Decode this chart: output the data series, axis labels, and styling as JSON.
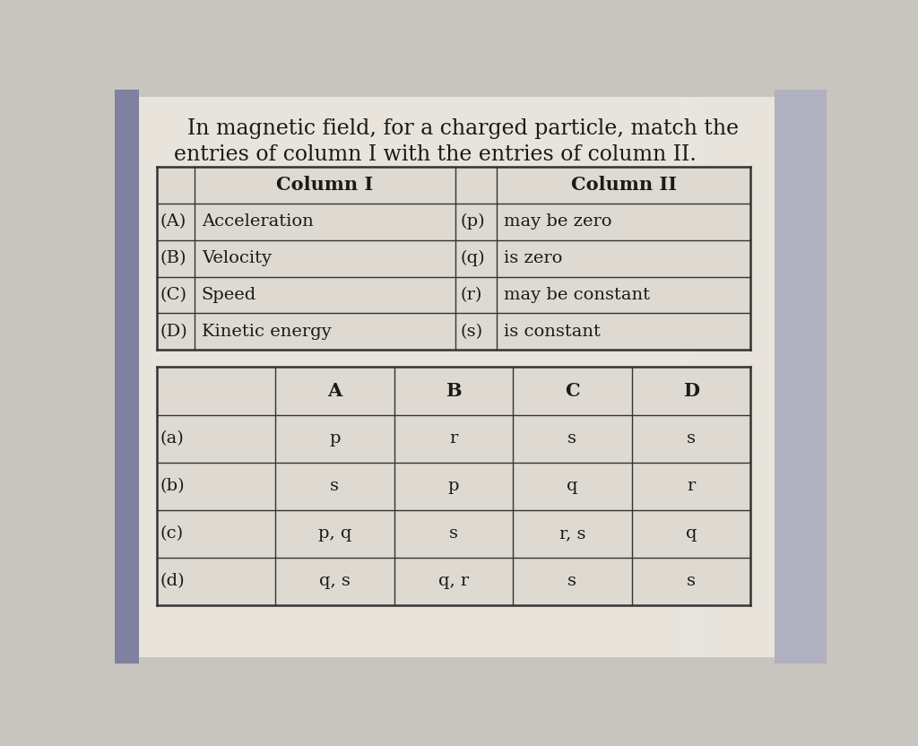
{
  "title_line1": "In magnetic field, for a charged particle, match the",
  "title_line2": "entries of column I with the entries of column II.",
  "bg_color": "#c8c4be",
  "page_color": "#e8e4dc",
  "table_bg": "#dedad2",
  "table1": {
    "col1_header": "Column I",
    "col2_header": "Column II",
    "rows": [
      [
        "(A)",
        "Acceleration",
        "(p)",
        "may be zero"
      ],
      [
        "(B)",
        "Velocity",
        "(q)",
        "is zero"
      ],
      [
        "(C)",
        "Speed",
        "(r)",
        "may be constant"
      ],
      [
        "(D)",
        "Kinetic energy",
        "(s)",
        "is constant"
      ]
    ]
  },
  "table2": {
    "headers": [
      "",
      "A",
      "B",
      "C",
      "D"
    ],
    "rows": [
      [
        "(a)",
        "p",
        "r",
        "s",
        "s"
      ],
      [
        "(b)",
        "s",
        "p",
        "q",
        "r"
      ],
      [
        "(c)",
        "p, q",
        "s",
        "r, s",
        "q"
      ],
      [
        "(d)",
        "q, s",
        "q, r",
        "s",
        "s"
      ]
    ]
  },
  "title_fontsize": 17,
  "header_fontsize": 15,
  "cell_fontsize": 14
}
